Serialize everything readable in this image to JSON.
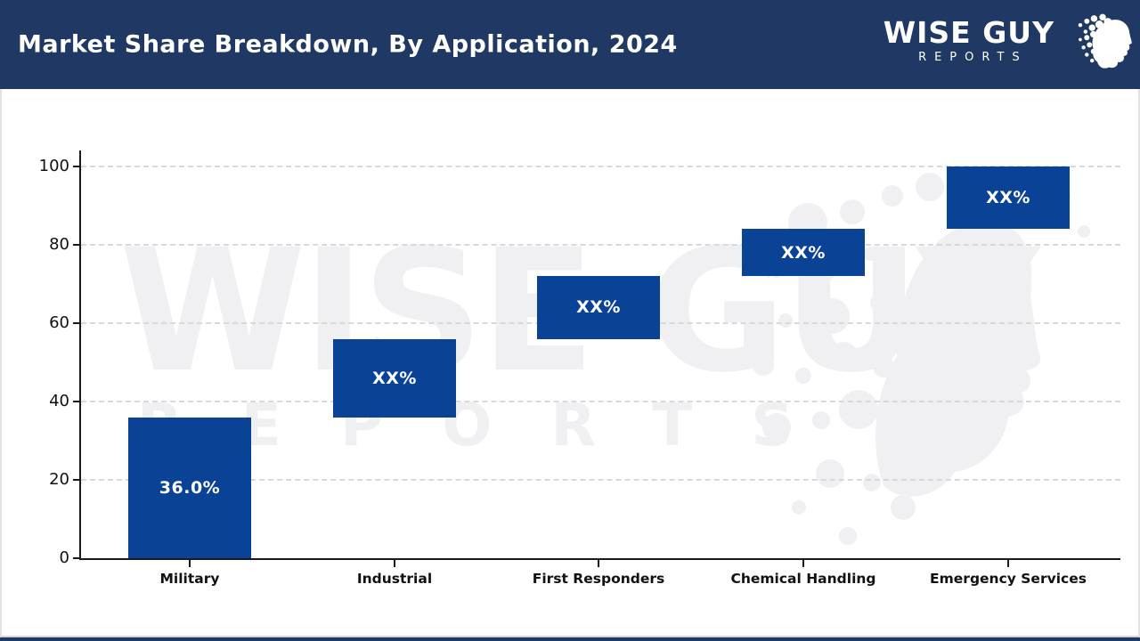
{
  "header": {
    "title": "Market Share Breakdown, By Application, 2024",
    "logo": {
      "line1": "WISE GUY",
      "line2": "REPORTS"
    }
  },
  "watermark": {
    "line1": "WISE GUY",
    "line2": "REPORTS"
  },
  "colors": {
    "header_navy": "#1f3864",
    "bar_blue": "#0a4296",
    "watermark_gray": "#f0f0f3",
    "gridline_gray": "#d9d9d9",
    "axis_black": "#1a1a1a",
    "bar_label_white": "#ffffff"
  },
  "chart_data": {
    "type": "bar",
    "subtype": "waterfall",
    "title": "Market Share Breakdown, By Application, 2024",
    "categories": [
      "Military",
      "Industrial",
      "First Responders",
      "Chemical Handling",
      "Emergency Services"
    ],
    "bars": [
      {
        "category": "Military",
        "start": 0,
        "end": 36,
        "label": "36.0%"
      },
      {
        "category": "Industrial",
        "start": 36,
        "end": 56,
        "label": "XX%"
      },
      {
        "category": "First Responders",
        "start": 56,
        "end": 72,
        "label": "XX%"
      },
      {
        "category": "Chemical Handling",
        "start": 72,
        "end": 84,
        "label": "XX%"
      },
      {
        "category": "Emergency Services",
        "start": 84,
        "end": 100,
        "label": "XX%"
      }
    ],
    "y_ticks": [
      0,
      20,
      40,
      60,
      80,
      100
    ],
    "ylim": [
      0,
      104
    ],
    "xlabel": "",
    "ylabel": "",
    "grid": "horizontal-dashed",
    "legend": "none"
  }
}
